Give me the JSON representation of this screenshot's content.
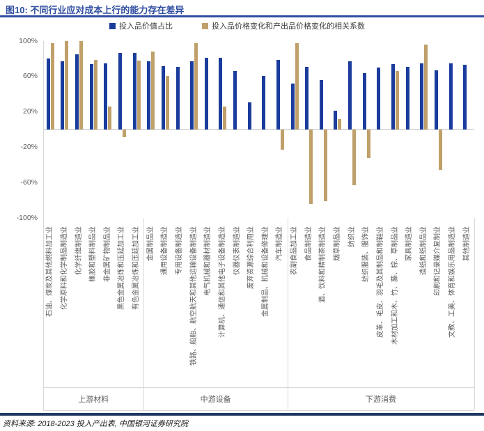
{
  "title": "图10: 不同行业应对成本上行的能力存在差异",
  "footer": "资料来源: 2018-2023 投入产出表, 中国银河证券研究院",
  "legend": [
    {
      "label": "投入品价值占比",
      "color": "#1A3C9C"
    },
    {
      "label": "投入品价格变化和产出品价格变化的相关系数",
      "color": "#C0A06A"
    }
  ],
  "colors": {
    "title_blue": "#2F4DA0",
    "bar_blue": "#1A3C9C",
    "bar_gold": "#C0A06A",
    "axis_gray": "#D9D9D9",
    "text_gray": "#595959",
    "bottom_rule_navy": "#1F3864"
  },
  "chart_data": {
    "type": "bar",
    "title": "图10: 不同行业应对成本上行的能力存在差异",
    "xlabel": "",
    "ylabel": "",
    "ylim": [
      -100,
      100
    ],
    "grid": false,
    "legend_position": "top",
    "yticks": [
      {
        "label": "100%",
        "value": 100
      },
      {
        "label": "60%",
        "value": 60
      },
      {
        "label": "20%",
        "value": 20
      },
      {
        "label": "-20%",
        "value": -20
      },
      {
        "label": "-60%",
        "value": -60
      },
      {
        "label": "-100%",
        "value": -100
      }
    ],
    "groups": [
      {
        "label": "上游材料",
        "count": 7
      },
      {
        "label": "中游设备",
        "count": 10
      },
      {
        "label": "下游消费",
        "count": 13
      }
    ],
    "categories": [
      "石油、煤炭及其他燃料加工业",
      "化学原料和化学制品制造业",
      "化学纤维制造业",
      "橡胶和塑料制品业",
      "非金属矿物制品业",
      "黑色金属冶炼和压延加工业",
      "有色金属冶炼和压延加工业",
      "金属制品业",
      "通用设备制造业",
      "专用设备制造业",
      "铁路、船舶、航空航天和其他运输设备制造业",
      "电气机械和器材制造业",
      "计算机、通信和其他电子设备制造业",
      "仪器仪表制造业",
      "废弃资源综合利用业",
      "金属制品、机械和设备修理业",
      "汽车制造业",
      "农副食品加工业",
      "食品制造业",
      "酒、饮料和精制茶制造业",
      "烟草制品业",
      "纺织业",
      "纺织服装、服饰业",
      "皮革、毛皮、羽毛及其制品和制鞋业",
      "木材加工和木、竹、藤、棕、草制品业",
      "家具制造业",
      "造纸和纸制品业",
      "印刷和记录媒介复制业",
      "文教、工美、体育和娱乐用品制造业",
      "其他制造业"
    ],
    "series": [
      {
        "name": "投入品价值占比",
        "color": "#1A3C9C",
        "values": [
          80,
          77,
          85,
          74,
          75,
          87,
          87,
          77,
          72,
          71,
          77,
          81,
          81,
          66,
          31,
          61,
          79,
          52,
          71,
          56,
          21,
          77,
          64,
          70,
          74,
          71,
          75,
          67,
          75,
          73
        ]
      },
      {
        "name": "投入品价格变化和产出品价格变化的相关系数",
        "color": "#C0A06A",
        "values": [
          98,
          100,
          100,
          79,
          26,
          -9,
          78,
          88,
          61,
          0,
          98,
          0,
          26,
          0,
          0,
          0,
          -23,
          98,
          -84,
          -81,
          12,
          -63,
          -32,
          0,
          66,
          0,
          96,
          -46,
          0,
          0
        ]
      }
    ]
  }
}
